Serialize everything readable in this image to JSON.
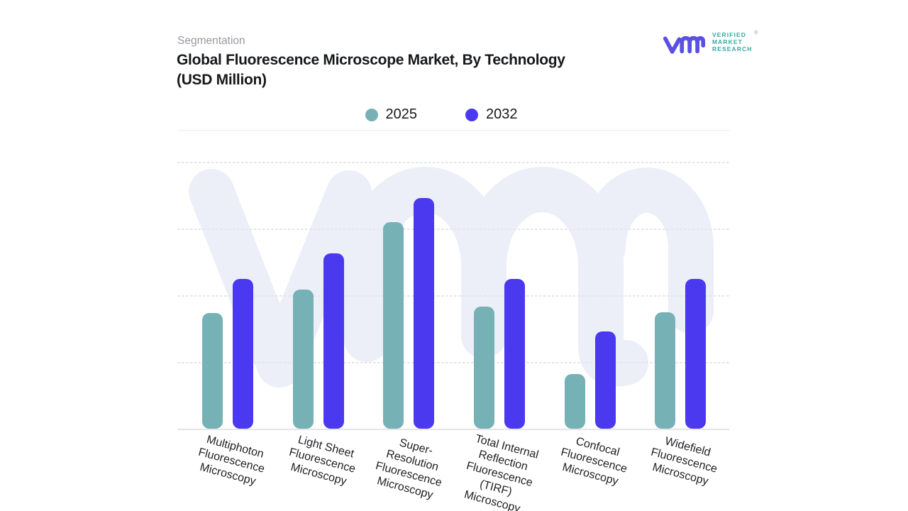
{
  "header": {
    "eyebrow": "Segmentation",
    "title": "Global Fluorescence Microscope Market, By Technology\n(USD Million)"
  },
  "brand": {
    "text_lines": [
      "VERIFIED",
      "MARKET",
      "RESEARCH"
    ],
    "registered_mark": "®",
    "logo_color": "#5a50e2",
    "text_color": "#35aaa2"
  },
  "legend": {
    "items": [
      {
        "label": "2025",
        "color": "#76b1b5"
      },
      {
        "label": "2032",
        "color": "#4a39ef"
      }
    ]
  },
  "chart_data": {
    "type": "bar",
    "title": "Global Fluorescence Microscope Market, By Technology (USD Million)",
    "categories": [
      "Multiphoton Fluorescence Microscopy",
      "Light Sheet Fluorescence Microscopy",
      "Super-Resolution Fluorescence Microscopy",
      "Total Internal Reflection Fluorescence (TIRF) Microscopy",
      "Confocal Fluorescence Microscopy",
      "Widefield Fluorescence Microscopy"
    ],
    "category_lines": [
      [
        "Multiphoton",
        "Fluorescence",
        "Microscopy"
      ],
      [
        "Light Sheet",
        "Fluorescence",
        "Microscopy"
      ],
      [
        "Super-",
        "Resolution",
        "Fluorescence",
        "Microscopy"
      ],
      [
        "Total Internal",
        "Reflection",
        "Fluorescence",
        "(TIRF)",
        "Microscopy"
      ],
      [
        "Confocal",
        "Fluorescence",
        "Microscopy"
      ],
      [
        "Widefield",
        "Fluorescence",
        "Microscopy"
      ]
    ],
    "series": [
      {
        "name": "2025",
        "color": "#76b1b5",
        "values": [
          173,
          208,
          310,
          183,
          82,
          174
        ]
      },
      {
        "name": "2032",
        "color": "#4a39ef",
        "values": [
          224,
          263,
          346,
          224,
          146,
          224
        ]
      }
    ],
    "ylim": [
      0,
      400
    ],
    "y_axis_labels_visible": false,
    "gridlines": "horizontal-dashed",
    "legend_position": "top-center"
  },
  "watermark": {
    "color": "#edeff8"
  }
}
